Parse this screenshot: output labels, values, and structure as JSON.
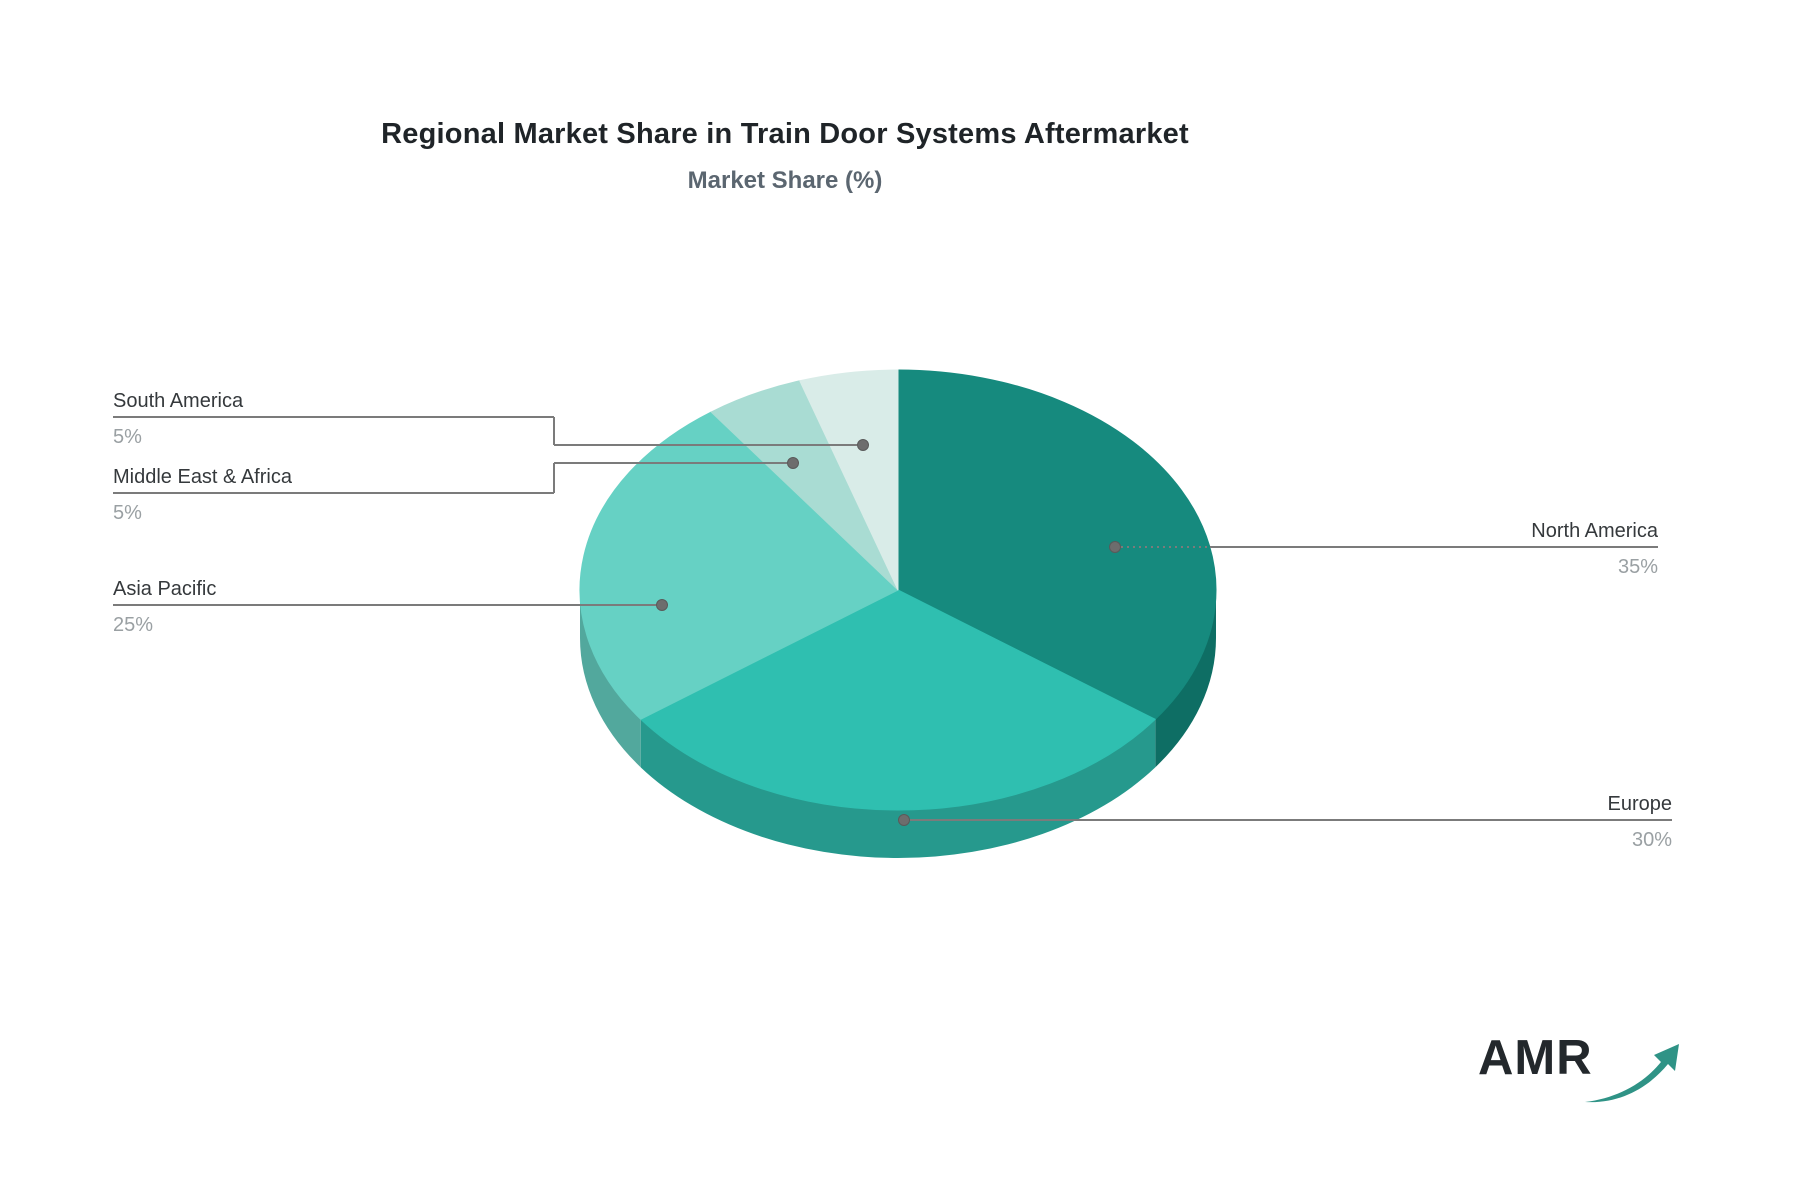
{
  "chart": {
    "title": "Regional Market Share in Train Door Systems Aftermarket",
    "subtitle": "Market Share (%)"
  },
  "branding": {
    "logo_text": "AMR"
  },
  "chart_data": {
    "type": "pie",
    "title": "Regional Market Share in Train Door Systems Aftermarket",
    "subtitle": "Market Share (%)",
    "unit": "percent",
    "total": 100,
    "start_angle_deg": 0,
    "direction": "clockwise",
    "effect_3d": true,
    "legend": "none",
    "categories": [
      "North America",
      "Europe",
      "Asia Pacific",
      "Middle East & Africa",
      "South America"
    ],
    "values": [
      35,
      30,
      25,
      5,
      5
    ],
    "slices": [
      {
        "label": "North America",
        "value": 35,
        "display": "35%",
        "color": "#168a7e",
        "side_color": "#0e6e64"
      },
      {
        "label": "Europe",
        "value": 30,
        "display": "30%",
        "color": "#2fbfb0",
        "side_color": "#26998d"
      },
      {
        "label": "Asia Pacific",
        "value": 25,
        "display": "25%",
        "color": "#66d1c4",
        "side_color": "#52a89d"
      },
      {
        "label": "Middle East & Africa",
        "value": 5,
        "display": "5%",
        "color": "#a9dcd3",
        "side_color": "#8cc6bc"
      },
      {
        "label": "South America",
        "value": 5,
        "display": "5%",
        "color": "#d9ece8",
        "side_color": "#b8d8d2"
      }
    ],
    "colors": {
      "label_text": "#35393c",
      "value_text": "#9aa0a3",
      "connector": "#7b7b7b",
      "connector_dot": "#6d6d6d",
      "title_text": "#1f2428",
      "subtitle_text": "#5b6670",
      "logo_accent": "#2f9386"
    }
  }
}
